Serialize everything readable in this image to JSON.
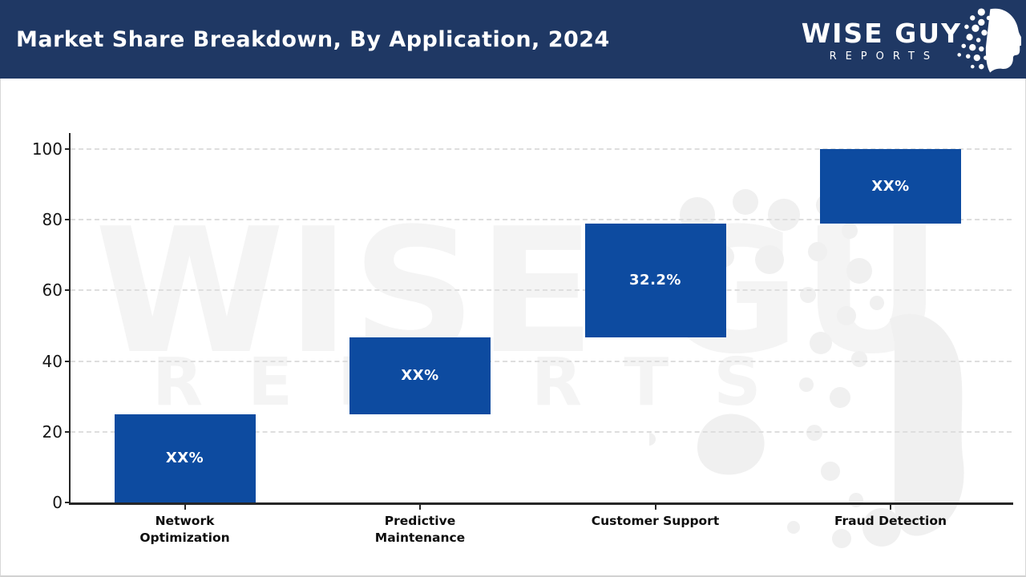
{
  "header": {
    "title": "Market Share Breakdown, By Application, 2024",
    "background_color": "#1f3864",
    "logo": {
      "line1": "WISE GUY",
      "line2": "REPORTS"
    }
  },
  "watermark": {
    "line1": "WISE GU",
    "line2": "REPORTS"
  },
  "chart_data": {
    "type": "bar",
    "subtype": "waterfall",
    "title": "Market Share Breakdown, By Application, 2024",
    "categories": [
      "Network Optimization",
      "Predictive Maintenance",
      "Customer Support",
      "Fraud Detection"
    ],
    "category_lines": [
      [
        "Network",
        "Optimization"
      ],
      [
        "Predictive",
        "Maintenance"
      ],
      [
        "Customer Support"
      ],
      [
        "Fraud Detection"
      ]
    ],
    "segments": [
      [
        0,
        25
      ],
      [
        25,
        46.8
      ],
      [
        46.8,
        79
      ],
      [
        79,
        100
      ]
    ],
    "values": [
      25,
      21.8,
      32.2,
      21
    ],
    "labels": [
      "XX%",
      "XX%",
      "32.2%",
      "XX%"
    ],
    "yticks": [
      0,
      20,
      40,
      60,
      80,
      100
    ],
    "ylim": [
      0,
      100
    ],
    "grid": "horizontal-dashed",
    "legend": "none",
    "bar_color": "#0d4ba0",
    "bar_label_color": "#ffffff",
    "axis_color": "#262626",
    "gridline_color": "#dedede"
  }
}
